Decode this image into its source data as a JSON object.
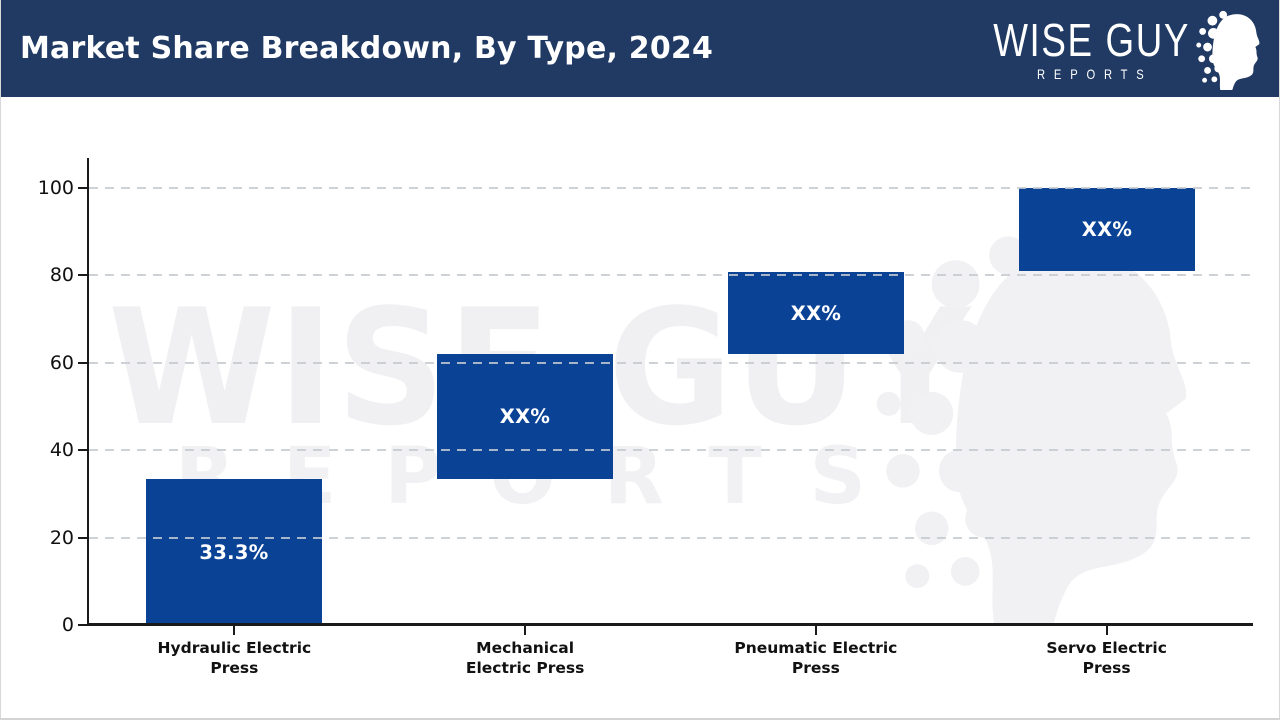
{
  "header": {
    "title": "Market Share Breakdown, By Type, 2024"
  },
  "brand": {
    "name": "WISE GUY",
    "subtitle": "REPORTS",
    "head_icon": "dotted-face-profile",
    "bg_color": "#203a64",
    "text_color": "#ffffff"
  },
  "watermark": {
    "line1": "WISE GUY",
    "line2": "REPORTS",
    "head_icon": "dotted-face-profile"
  },
  "chart_data": {
    "type": "bar",
    "subtype": "waterfall",
    "title": "Market Share Breakdown, By Type, 2024",
    "categories": [
      "Hydraulic Electric Press",
      "Mechanical Electric Press",
      "Pneumatic Electric Press",
      "Servo Electric Press"
    ],
    "category_label_lines": [
      [
        "Hydraulic Electric",
        "Press"
      ],
      [
        "Mechanical",
        "Electric Press"
      ],
      [
        "Pneumatic Electric",
        "Press"
      ],
      [
        "Servo Electric",
        "Press"
      ]
    ],
    "segments": [
      {
        "category": "Hydraulic Electric Press",
        "start": 0,
        "end": 33.3,
        "label": "33.3%"
      },
      {
        "category": "Mechanical Electric Press",
        "start": 33.3,
        "end": 61.9,
        "label": "XX%"
      },
      {
        "category": "Pneumatic Electric Press",
        "start": 62.0,
        "end": 80.6,
        "label": "XX%"
      },
      {
        "category": "Servo Electric Press",
        "start": 80.9,
        "end": 100,
        "label": "XX%"
      }
    ],
    "ylim": [
      0,
      100
    ],
    "yticks": [
      0,
      20,
      40,
      60,
      80,
      100
    ],
    "xlabel": "",
    "ylabel": "",
    "grid": "dashed horizontal",
    "legend": "none",
    "bar_color": "#0a4296",
    "bar_label_color": "#ffffff",
    "axis_color": "#1a1a1a"
  }
}
